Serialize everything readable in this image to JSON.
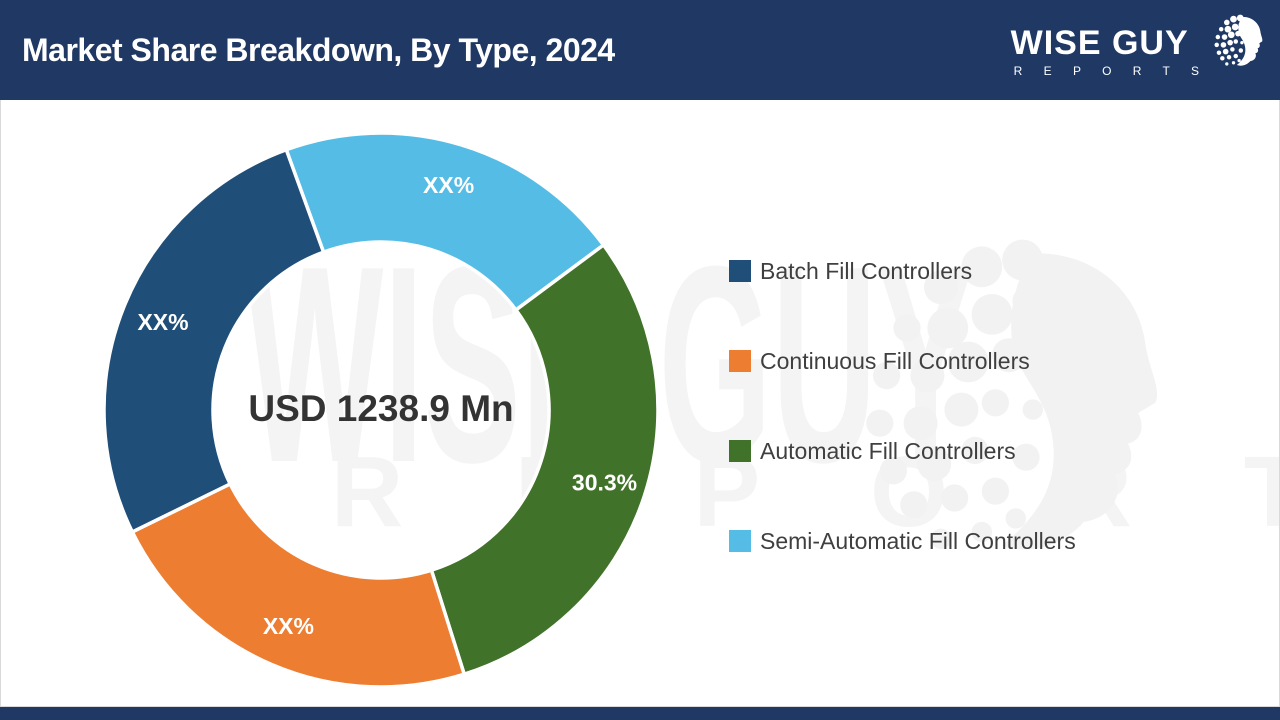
{
  "header": {
    "title": "Market Share Breakdown, By Type, 2024",
    "bg_color": "#1f3864",
    "logo": {
      "line1": "WISE GUY",
      "line2": "R E P O R T S"
    }
  },
  "footer": {
    "bg_color": "#1f3864"
  },
  "watermark": {
    "line1": "WISE GUY",
    "line2": "R E P O R T S"
  },
  "chart_data": {
    "type": "pie",
    "subtype": "donut",
    "title": "Market Share Breakdown, By Type, 2024",
    "center_label": "USD 1238.9 Mn",
    "legend_position": "right",
    "start_angle_deg": -20,
    "slices": [
      {
        "id": "semi-automatic-fill-controllers",
        "name": "Semi-Automatic Fill Controllers",
        "label": "XX%",
        "pct": 20.4,
        "color": "#55bce6"
      },
      {
        "id": "automatic-fill-controllers",
        "name": "Automatic Fill Controllers",
        "label": "30.3%",
        "pct": 30.3,
        "color": "#417229"
      },
      {
        "id": "continuous-fill-controllers",
        "name": "Continuous Fill Controllers",
        "label": "XX%",
        "pct": 22.6,
        "color": "#ed7d31"
      },
      {
        "id": "batch-fill-controllers",
        "name": "Batch Fill Controllers",
        "label": "XX%",
        "pct": 26.7,
        "color": "#1f4e79"
      }
    ]
  },
  "center": {
    "value": "USD 1238.9 Mn"
  },
  "legend": {
    "items": [
      {
        "label": "Batch Fill Controllers",
        "color": "#1f4e79"
      },
      {
        "label": "Continuous Fill Controllers",
        "color": "#ed7d31"
      },
      {
        "label": "Automatic Fill Controllers",
        "color": "#417229"
      },
      {
        "label": "Semi-Automatic Fill Controllers",
        "color": "#55bce6"
      }
    ]
  }
}
